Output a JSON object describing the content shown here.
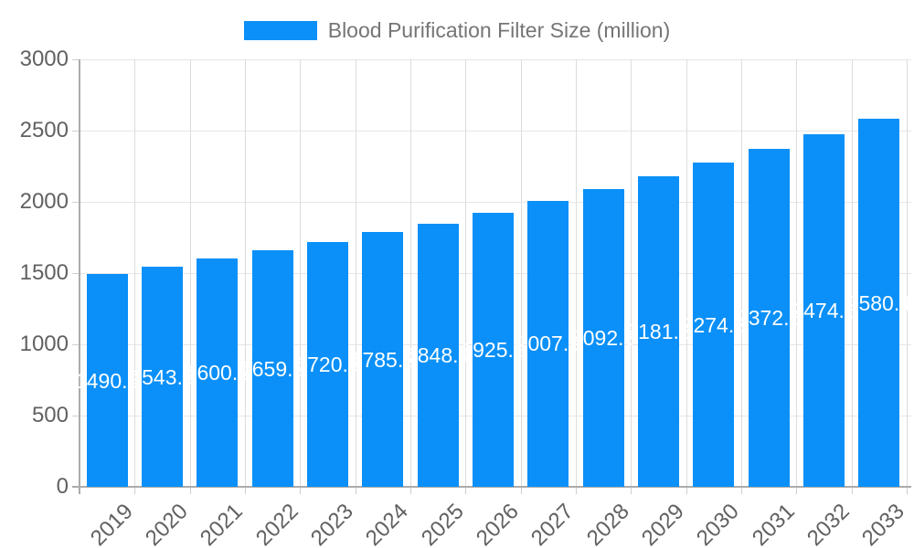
{
  "chart_data": {
    "type": "bar",
    "legend": "Blood Purification Filter Size (million)",
    "categories": [
      "2019",
      "2020",
      "2021",
      "2022",
      "2023",
      "2024",
      "2025",
      "2026",
      "2027",
      "2028",
      "2029",
      "2030",
      "2031",
      "2032",
      "2033"
    ],
    "values": [
      1490.5,
      1543.6,
      1600.2,
      1659.3,
      1720.5,
      1785.3,
      1848.4,
      1925.1,
      2007.9,
      2092.8,
      2181.2,
      2274.3,
      2372.5,
      2474.1,
      2580.4
    ],
    "value_label_decimals": 1,
    "value_label_position": "inside-middle",
    "yticks": [
      0,
      500,
      1000,
      1500,
      2000,
      2500,
      3000
    ],
    "ylim": [
      0,
      3000
    ],
    "xlabel": "",
    "ylabel": "",
    "grid": true,
    "legend_position": "top-center",
    "x_label_rotation_deg": -45,
    "colors": {
      "bar": "#0a90f8",
      "value_label": "#ffffff",
      "axis_label": "#616161",
      "legend_text": "#757575",
      "grid_line": "#e6e6e6",
      "axis_line": "#ababab"
    }
  }
}
